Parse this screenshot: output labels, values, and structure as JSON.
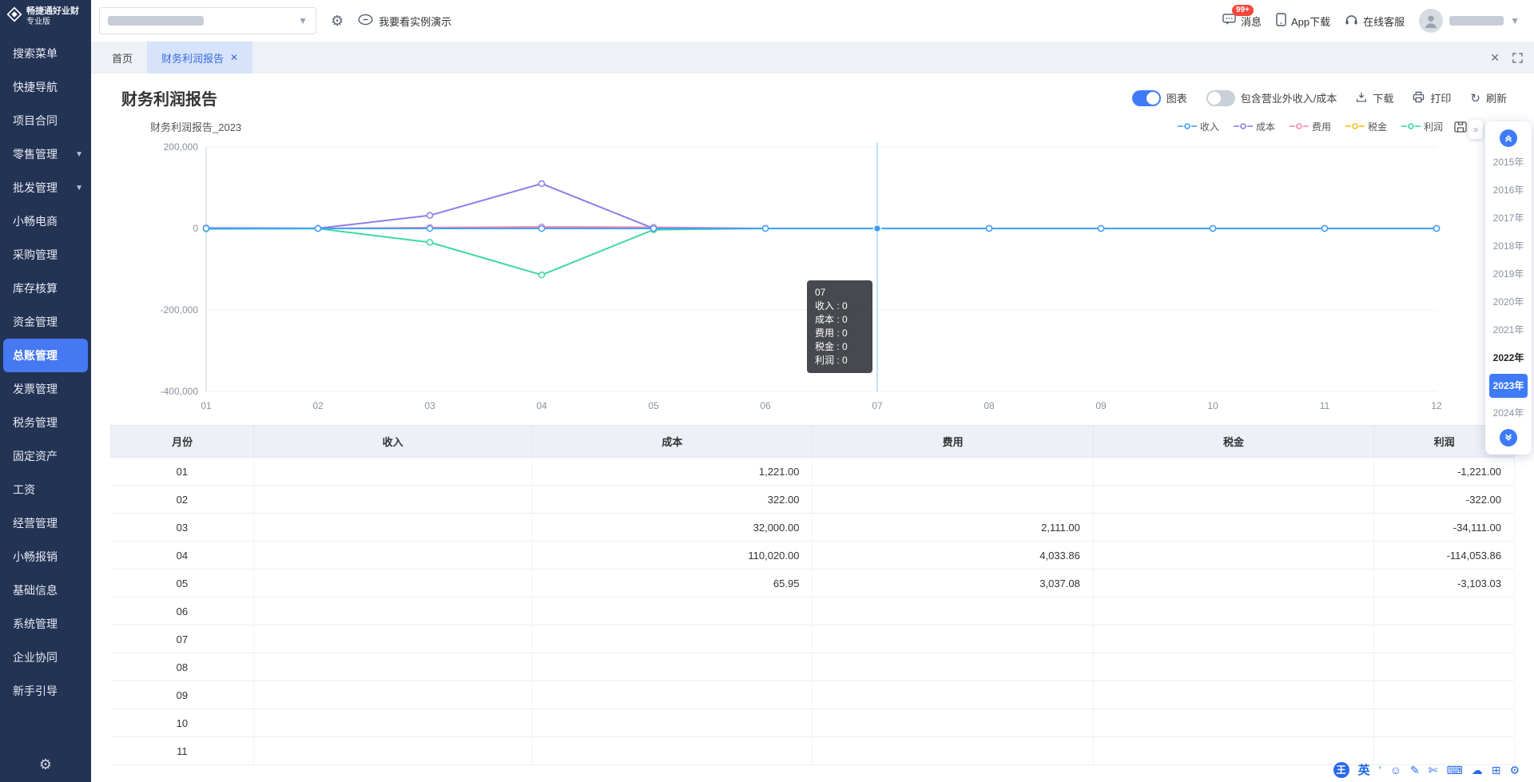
{
  "app": {
    "logo_title": "畅捷通好业财",
    "logo_subtitle": "专业版"
  },
  "sidebar": {
    "items": [
      {
        "key": "search-menu",
        "label": "搜索菜单"
      },
      {
        "key": "quick-nav",
        "label": "快捷导航"
      },
      {
        "key": "project-contract",
        "label": "项目合同"
      },
      {
        "key": "retail-mgmt",
        "label": "零售管理",
        "arrow": true
      },
      {
        "key": "wholesale-mgmt",
        "label": "批发管理",
        "arrow": true
      },
      {
        "key": "ecommerce",
        "label": "小畅电商"
      },
      {
        "key": "purchase-mgmt",
        "label": "采购管理"
      },
      {
        "key": "inventory-accounting",
        "label": "库存核算"
      },
      {
        "key": "funds-mgmt",
        "label": "资金管理"
      },
      {
        "key": "general-ledger",
        "label": "总账管理",
        "active": true
      },
      {
        "key": "invoice-mgmt",
        "label": "发票管理"
      },
      {
        "key": "tax-mgmt",
        "label": "税务管理"
      },
      {
        "key": "fixed-assets",
        "label": "固定资产"
      },
      {
        "key": "payroll",
        "label": "工资"
      },
      {
        "key": "business-mgmt",
        "label": "经营管理"
      },
      {
        "key": "expense-claim",
        "label": "小畅报销"
      },
      {
        "key": "base-info",
        "label": "基础信息"
      },
      {
        "key": "system-mgmt",
        "label": "系统管理"
      },
      {
        "key": "enterprise-collab",
        "label": "企业协同"
      },
      {
        "key": "beginner-guide",
        "label": "新手引导"
      }
    ]
  },
  "topbar": {
    "demo_label": "我要看实例演示",
    "messages_label": "消息",
    "messages_badge": "99+",
    "app_download_label": "App下载",
    "support_label": "在线客服"
  },
  "tabs": [
    {
      "key": "home",
      "label": "首页",
      "active": false,
      "closable": false
    },
    {
      "key": "profit-report",
      "label": "财务利润报告",
      "active": true,
      "closable": true
    }
  ],
  "page": {
    "title": "财务利润报告",
    "toggles": [
      {
        "key": "chart",
        "label": "图表",
        "on": true
      },
      {
        "key": "include-non-operating",
        "label": "包含营业外收入/成本",
        "on": false
      }
    ],
    "buttons": [
      {
        "key": "download",
        "label": "下载"
      },
      {
        "key": "print",
        "label": "打印"
      },
      {
        "key": "refresh",
        "label": "刷新"
      }
    ]
  },
  "chart_data": {
    "type": "line",
    "title": "财务利润报告_2023",
    "x": [
      "01",
      "02",
      "03",
      "04",
      "05",
      "06",
      "07",
      "08",
      "09",
      "10",
      "11",
      "12"
    ],
    "series": [
      {
        "key": "income",
        "name": "收入",
        "color": "#41a0fc",
        "values": [
          0,
          0,
          0,
          0,
          0,
          0,
          0,
          0,
          0,
          0,
          0,
          0
        ]
      },
      {
        "key": "cost",
        "name": "成本",
        "color": "#8f7cea",
        "values": [
          1221,
          322,
          32000,
          110020,
          65.95,
          0,
          0,
          0,
          0,
          0,
          0,
          0
        ]
      },
      {
        "key": "expense",
        "name": "费用",
        "color": "#f78bb2",
        "values": [
          0,
          0,
          2111,
          4033.86,
          3037.08,
          0,
          0,
          0,
          0,
          0,
          0,
          0
        ]
      },
      {
        "key": "tax",
        "name": "税金",
        "color": "#f6bd16",
        "values": [
          0,
          0,
          0,
          0,
          0,
          0,
          0,
          0,
          0,
          0,
          0,
          0
        ]
      },
      {
        "key": "profit",
        "name": "利润",
        "color": "#3ed6a5",
        "values": [
          -1221,
          -322,
          -34111,
          -114053.86,
          -3103.03,
          0,
          0,
          0,
          0,
          0,
          0,
          0
        ]
      }
    ],
    "ylim": [
      -400000,
      200000
    ],
    "ytick_values": [
      200000,
      0,
      -200000,
      -400000
    ],
    "ytick_labels": [
      "200,000",
      "0",
      "-200,000",
      "-400,000"
    ],
    "grid": true,
    "legend_position": "top-right",
    "tooltip": {
      "index": 6,
      "title": "07",
      "lines": [
        "收入 : 0",
        "成本 : 0",
        "费用 : 0",
        "税金 : 0",
        "利润 : 0"
      ]
    }
  },
  "year_panel": {
    "years": [
      "2015年",
      "2016年",
      "2017年",
      "2018年",
      "2019年",
      "2020年",
      "2021年",
      "2022年",
      "2023年",
      "2024年"
    ],
    "selected": "2023年",
    "emphasized": "2022年"
  },
  "table": {
    "column_keys": [
      "month",
      "income",
      "cost",
      "expense",
      "tax",
      "profit"
    ],
    "headers": [
      "月份",
      "收入",
      "成本",
      "费用",
      "税金",
      "利润"
    ],
    "rows": [
      [
        "01",
        "",
        "1,221.00",
        "",
        "",
        "-1,221.00"
      ],
      [
        "02",
        "",
        "322.00",
        "",
        "",
        "-322.00"
      ],
      [
        "03",
        "",
        "32,000.00",
        "2,111.00",
        "",
        "-34,111.00"
      ],
      [
        "04",
        "",
        "110,020.00",
        "4,033.86",
        "",
        "-114,053.86"
      ],
      [
        "05",
        "",
        "65.95",
        "3,037.08",
        "",
        "-3,103.03"
      ],
      [
        "06",
        "",
        "",
        "",
        "",
        ""
      ],
      [
        "07",
        "",
        "",
        "",
        "",
        ""
      ],
      [
        "08",
        "",
        "",
        "",
        "",
        ""
      ],
      [
        "09",
        "",
        "",
        "",
        "",
        ""
      ],
      [
        "10",
        "",
        "",
        "",
        "",
        ""
      ],
      [
        "11",
        "",
        "",
        "",
        "",
        ""
      ]
    ]
  },
  "ime": {
    "logo": "王",
    "lang": "英",
    "icons": [
      {
        "name": "ime-quote-icon",
        "glyph": "’"
      },
      {
        "name": "ime-emoji-icon",
        "glyph": "☺"
      },
      {
        "name": "ime-pen-icon",
        "glyph": "✎"
      },
      {
        "name": "ime-scissors-icon",
        "glyph": "✄"
      },
      {
        "name": "ime-keyboard-icon",
        "glyph": "⌨"
      },
      {
        "name": "ime-cloud-icon",
        "glyph": "☁"
      },
      {
        "name": "ime-grid-icon",
        "glyph": "⊞"
      },
      {
        "name": "ime-gear-icon",
        "glyph": "⚙"
      }
    ]
  }
}
